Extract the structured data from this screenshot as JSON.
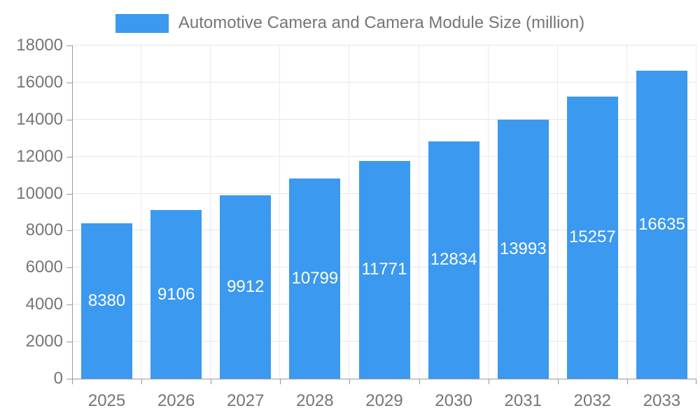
{
  "chart_data": {
    "type": "bar",
    "title": "",
    "categories": [
      "2025",
      "2026",
      "2027",
      "2028",
      "2029",
      "2030",
      "2031",
      "2032",
      "2033"
    ],
    "series": [
      {
        "name": "Automotive Camera and Camera Module Size (million)",
        "values": [
          8380,
          9106,
          9912,
          10799,
          11771,
          12834,
          13993,
          15257,
          16635
        ]
      }
    ],
    "data_labels": [
      8380,
      9106,
      9912,
      10799,
      11771,
      12834,
      13993,
      15257,
      16635
    ],
    "xlabel": "",
    "ylabel": "",
    "ylim": [
      0,
      18000
    ],
    "ytick_interval": 2000,
    "yticks": [
      0,
      2000,
      4000,
      6000,
      8000,
      10000,
      12000,
      14000,
      16000,
      18000
    ],
    "grid": true,
    "legend_position": "top-center",
    "colors": {
      "bar": "#3B99EF",
      "hgrid": "#E6E6E6",
      "vgrid": "#EBEBEB",
      "axis": "#999999",
      "tick_text": "#757575",
      "legend_text": "#757575",
      "value_label": "#FFFFFF"
    }
  }
}
